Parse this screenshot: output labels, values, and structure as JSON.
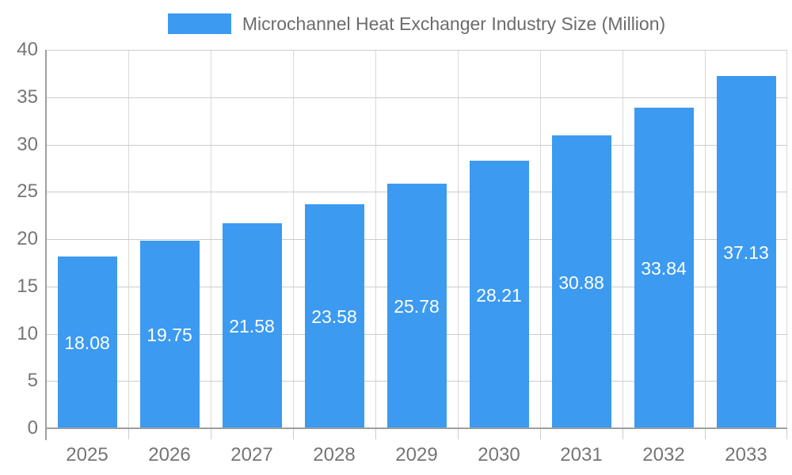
{
  "legend": {
    "label": "Microchannel Heat Exchanger Industry Size (Million)"
  },
  "chart_data": {
    "type": "bar",
    "title": "Microchannel Heat Exchanger Industry Size (Million)",
    "categories": [
      "2025",
      "2026",
      "2027",
      "2028",
      "2029",
      "2030",
      "2031",
      "2032",
      "2033"
    ],
    "values": [
      18.08,
      19.75,
      21.58,
      23.58,
      25.78,
      28.21,
      30.88,
      33.84,
      37.13
    ],
    "value_labels": [
      "18.08",
      "19.75",
      "21.58",
      "23.58",
      "25.78",
      "28.21",
      "30.88",
      "33.84",
      "37.13"
    ],
    "xlabel": "",
    "ylabel": "",
    "ylim": [
      0,
      40
    ],
    "ytick_step": 5,
    "ytick_labels": [
      "0",
      "5",
      "10",
      "15",
      "20",
      "25",
      "30",
      "35",
      "40"
    ],
    "grid": true,
    "legend_position": "top"
  },
  "colors": {
    "bar": "#3C9AF0",
    "grid_h": "#cccccc",
    "grid_v": "#d9d9d9",
    "axis": "#9e9e9e",
    "tick": "#cccccc",
    "axis_text": "#757575",
    "legend_text": "#6b6b6b",
    "bar_label_text": "#ffffff",
    "background": "#ffffff"
  }
}
